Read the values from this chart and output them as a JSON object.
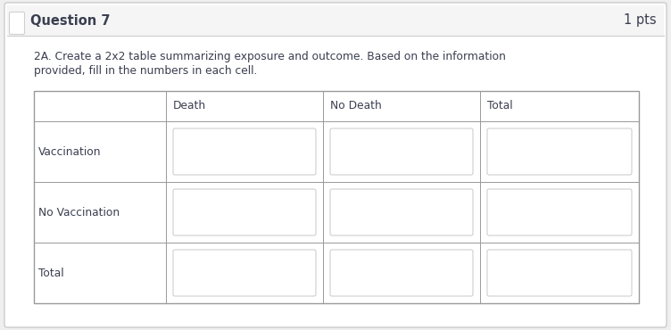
{
  "title": "Question 7",
  "pts": "1 pts",
  "description_line1": "2A. Create a 2x2 table summarizing exposure and outcome. Based on the information",
  "description_line2": "provided, fill in the numbers in each cell.",
  "col_headers": [
    "",
    "Death",
    "No Death",
    "Total"
  ],
  "row_headers": [
    "Vaccination",
    "No Vaccination",
    "Total"
  ],
  "bg_color": "#efefef",
  "card_bg": "#ffffff",
  "header_bg": "#f5f5f5",
  "border_color": "#cccccc",
  "text_color": "#3a3f50",
  "title_font_size": 10.5,
  "body_font_size": 8.8,
  "table_font_size": 8.8,
  "input_box_color": "#ffffff",
  "input_box_border": "#c8c8c8",
  "table_border_color": "#999999",
  "accent_color": "#d0d0d0"
}
